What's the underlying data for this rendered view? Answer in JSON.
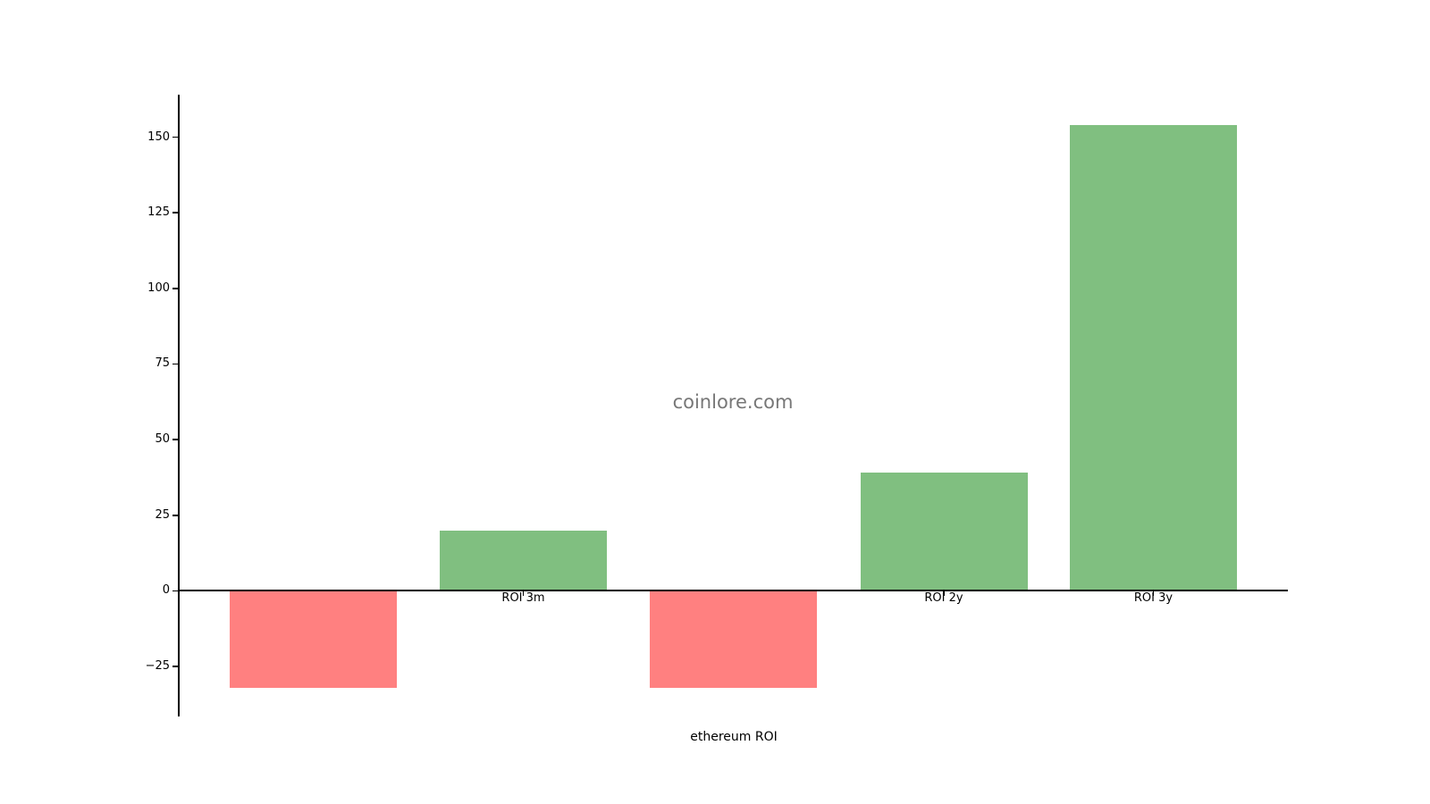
{
  "page": {
    "background": "#ffffff"
  },
  "watermark": {
    "text": "coinlore.com",
    "color": "#777777"
  },
  "chart_data": {
    "type": "bar",
    "title": "",
    "xlabel": "ethereum ROI",
    "ylabel": "",
    "categories": [
      "",
      "ROI 3m",
      "",
      "ROI 2y",
      "ROI 3y"
    ],
    "values": [
      -32,
      20,
      -32,
      39,
      154
    ],
    "bars": [
      {
        "label": "",
        "value": -32,
        "color": "#ff8080"
      },
      {
        "label": "ROI 3m",
        "value": 20,
        "color": "#80bf80"
      },
      {
        "label": "",
        "value": -32,
        "color": "#ff8080"
      },
      {
        "label": "ROI 2y",
        "value": 39,
        "color": "#80bf80"
      },
      {
        "label": "ROI 3y",
        "value": 154,
        "color": "#80bf80"
      }
    ],
    "yticks": [
      150,
      125,
      100,
      75,
      50,
      25,
      0,
      -25
    ],
    "ylim": [
      -41.5,
      164
    ],
    "positive_color": "#80bf80",
    "negative_color": "#ff8080",
    "axis_color": "#000000",
    "grid": false,
    "legend": false
  }
}
